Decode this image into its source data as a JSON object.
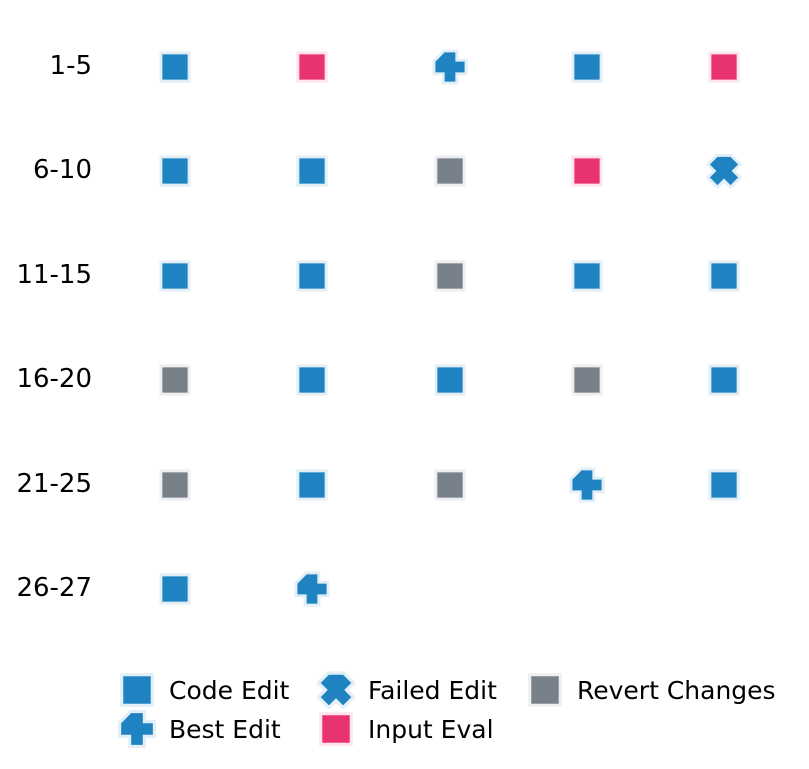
{
  "chart_data": {
    "type": "scatter",
    "title": "",
    "xlabel": "",
    "ylabel": "",
    "description_colors": {
      "blue": "#1f82c1",
      "pink": "#e8336e",
      "gray": "#788089",
      "text": "#000000",
      "background": "#ffffff"
    },
    "marker_styles": {
      "code_edit": {
        "shape": "square",
        "color": "#1f82c1"
      },
      "failed_edit": {
        "shape": "x",
        "color": "#1f82c1"
      },
      "revert_changes": {
        "shape": "square",
        "color": "#788089"
      },
      "best_edit": {
        "shape": "plus",
        "color": "#1f82c1"
      },
      "input_eval": {
        "shape": "square",
        "color": "#e8336e"
      }
    },
    "columns_per_row": 5,
    "rows": [
      {
        "label": "1-5",
        "markers": [
          "code_edit",
          "input_eval",
          "best_edit",
          "code_edit",
          "input_eval"
        ]
      },
      {
        "label": "6-10",
        "markers": [
          "code_edit",
          "code_edit",
          "revert_changes",
          "input_eval",
          "failed_edit"
        ]
      },
      {
        "label": "11-15",
        "markers": [
          "code_edit",
          "code_edit",
          "revert_changes",
          "code_edit",
          "code_edit"
        ]
      },
      {
        "label": "16-20",
        "markers": [
          "revert_changes",
          "code_edit",
          "code_edit",
          "revert_changes",
          "code_edit"
        ]
      },
      {
        "label": "21-25",
        "markers": [
          "revert_changes",
          "code_edit",
          "revert_changes",
          "best_edit",
          "code_edit"
        ]
      },
      {
        "label": "26-27",
        "markers": [
          "code_edit",
          "best_edit",
          null,
          null,
          null
        ]
      }
    ],
    "legend": [
      {
        "label": "Code Edit",
        "marker": "code_edit"
      },
      {
        "label": "Failed Edit",
        "marker": "failed_edit"
      },
      {
        "label": "Revert Changes",
        "marker": "revert_changes"
      },
      {
        "label": "Best Edit",
        "marker": "best_edit"
      },
      {
        "label": "Input Eval",
        "marker": "input_eval"
      }
    ],
    "legend_position": "bottom",
    "grid": false,
    "axes_visible": false
  }
}
